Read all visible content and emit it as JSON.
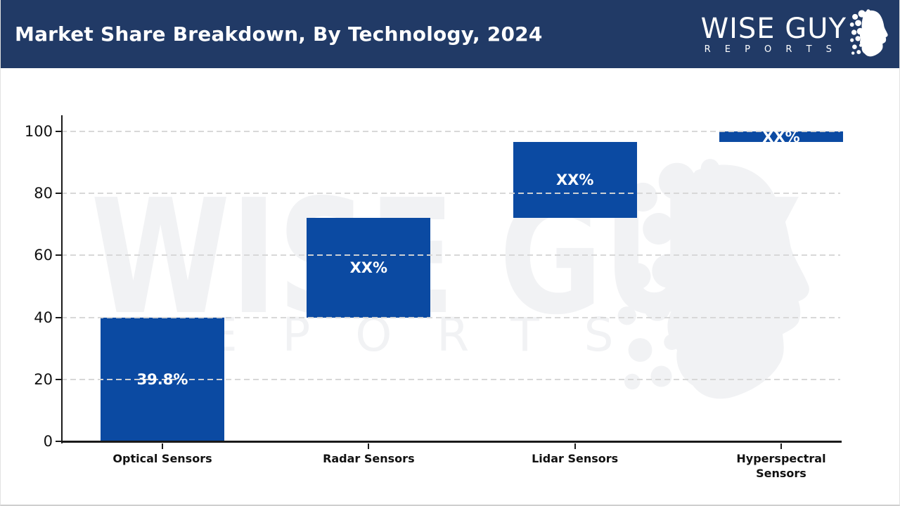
{
  "header": {
    "title": "Market Share Breakdown, By Technology, 2024",
    "logo": {
      "name": "WISE GUY",
      "sub": "R E P O R T S"
    }
  },
  "watermark": {
    "name": "WISE GUY",
    "sub": "REPORTS"
  },
  "chart_data": {
    "type": "bar",
    "variant": "waterfall",
    "title": "Market Share Breakdown, By Technology, 2024",
    "categories": [
      "Optical Sensors",
      "Radar Sensors",
      "Lidar Sensors",
      "Hyperspectral Sensors"
    ],
    "segments": [
      {
        "category": "Optical Sensors",
        "start": 0,
        "end": 39.8,
        "label": "39.8%"
      },
      {
        "category": "Radar Sensors",
        "start": 39.8,
        "end": 72,
        "label": "XX%"
      },
      {
        "category": "Lidar Sensors",
        "start": 72,
        "end": 96.5,
        "label": "XX%"
      },
      {
        "category": "Hyperspectral Sensors",
        "start": 96.5,
        "end": 100,
        "label": "XX%"
      }
    ],
    "xlabel": "",
    "ylabel": "",
    "ylim": [
      0,
      100
    ],
    "yticks": [
      0,
      20,
      40,
      60,
      80,
      100
    ],
    "grid": "horizontal-dashed",
    "legend": "none",
    "colors": {
      "bar": "#0b4aa2",
      "bar_label": "#ffffff",
      "axis": "#1a1a1a",
      "grid": "#d6d6d6",
      "header_bg": "#213a66",
      "watermark": "#f1f2f4"
    }
  }
}
